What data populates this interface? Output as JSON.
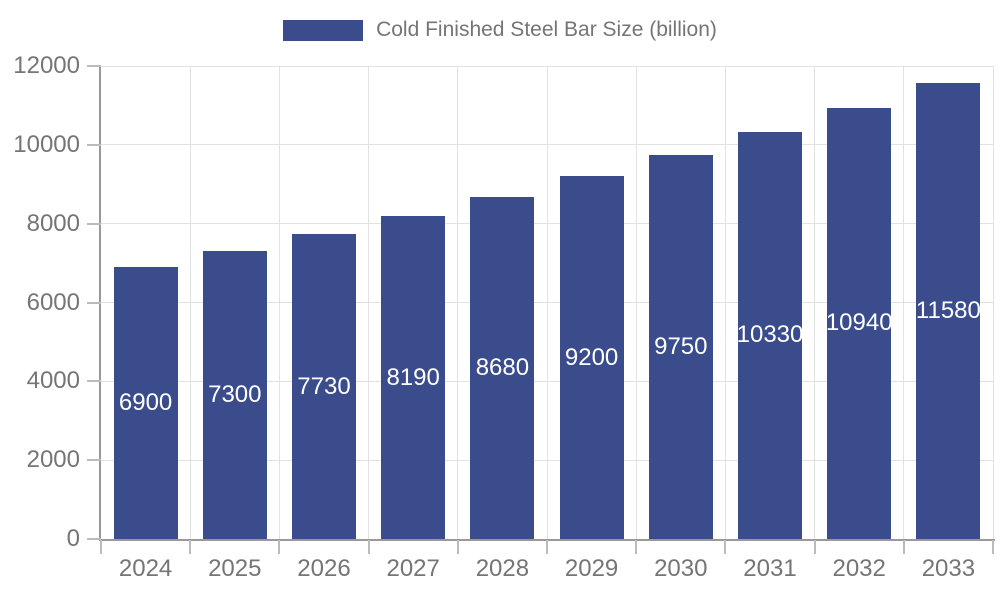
{
  "legend": {
    "label": "Cold Finished Steel Bar Size (billion)"
  },
  "colors": {
    "bar": "#3A4C8C",
    "axis_line": "#999999",
    "tick": "#BBBBBB",
    "grid": "#E2E2E2",
    "text": "#757575",
    "value_label": "#FFFFFF",
    "background": "#FFFFFF"
  },
  "chart_data": {
    "type": "bar",
    "title": "Cold Finished Steel Bar Size (billion)",
    "series": [
      {
        "name": "Cold Finished Steel Bar Size (billion)",
        "values": [
          6900,
          7300,
          7730,
          8190,
          8680,
          9200,
          9750,
          10330,
          10940,
          11580
        ]
      }
    ],
    "categories": [
      "2024",
      "2025",
      "2026",
      "2027",
      "2028",
      "2029",
      "2030",
      "2031",
      "2032",
      "2033"
    ],
    "xlabel": "",
    "ylabel": "",
    "ylim": [
      0,
      12000
    ],
    "yticks": [
      0,
      2000,
      4000,
      6000,
      8000,
      10000,
      12000
    ],
    "grid": true,
    "legend_position": "top",
    "bar_label_position": "inside-center"
  }
}
